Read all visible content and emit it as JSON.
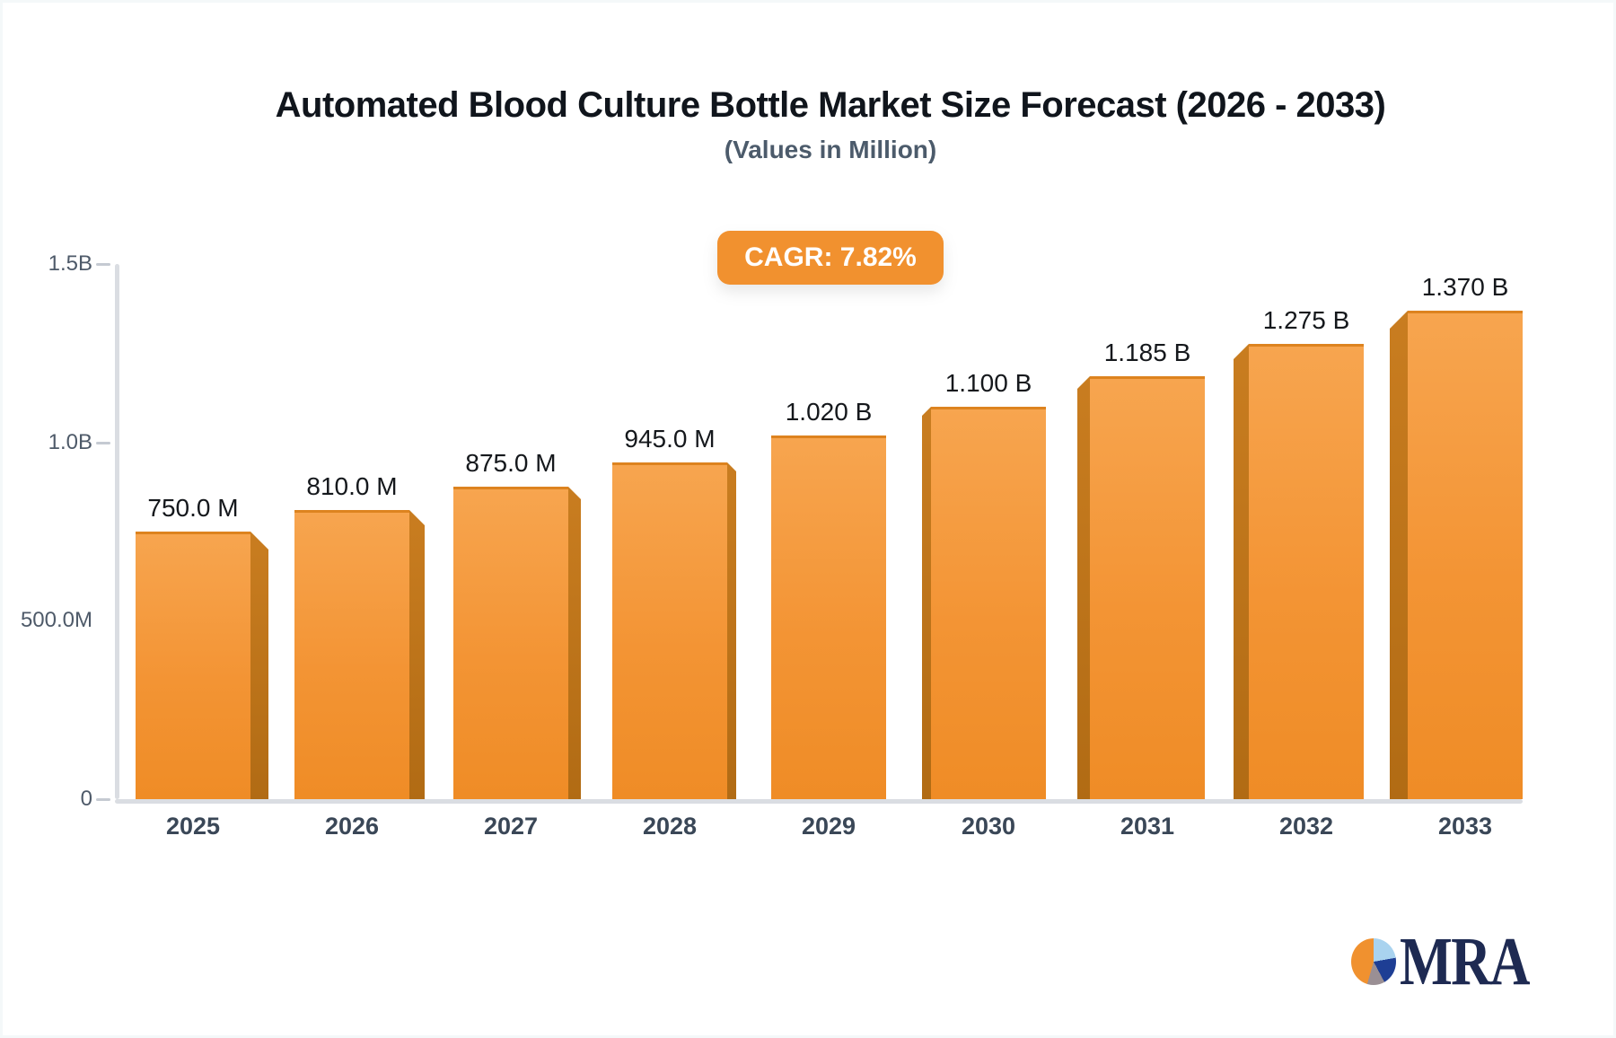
{
  "chart_data": {
    "type": "bar",
    "title": "Automated Blood Culture Bottle Market Size Forecast (2026 - 2033)",
    "subtitle": "(Values in Million)",
    "annotation": "CAGR: 7.82%",
    "categories": [
      "2025",
      "2026",
      "2027",
      "2028",
      "2029",
      "2030",
      "2031",
      "2032",
      "2033"
    ],
    "values": [
      750,
      810,
      875,
      945,
      1020,
      1100,
      1185,
      1275,
      1370
    ],
    "values_unit": "millions",
    "value_labels": [
      "750.0 M",
      "810.0 M",
      "875.0 M",
      "945.0 M",
      "1.020 B",
      "1.100 B",
      "1.185 B",
      "1.275 B",
      "1.370 B"
    ],
    "ylim": [
      0,
      1500
    ],
    "y_ticks": [
      {
        "label": "1.5B",
        "value": 1500,
        "dash": true
      },
      {
        "label": "1.0B",
        "value": 1000,
        "dash": true
      },
      {
        "label": "500.0M",
        "value": 500,
        "dash": false
      },
      {
        "label": "0",
        "value": 0,
        "dash": true
      }
    ],
    "grid": "off",
    "legend": "none",
    "bar_color": "#f39434",
    "bar_side_color": "#b86f16",
    "axis_color": "#dadde2",
    "annotation_bg_color": "#f1912f"
  },
  "footer": {
    "logo_text": "MRA",
    "logo_pie_colors": {
      "orange": "#f0912f",
      "light_blue": "#a9d3ef",
      "dark_blue": "#1e3e94",
      "gray": "#9a8f94"
    },
    "logo_text_color": "#1e2a52"
  }
}
